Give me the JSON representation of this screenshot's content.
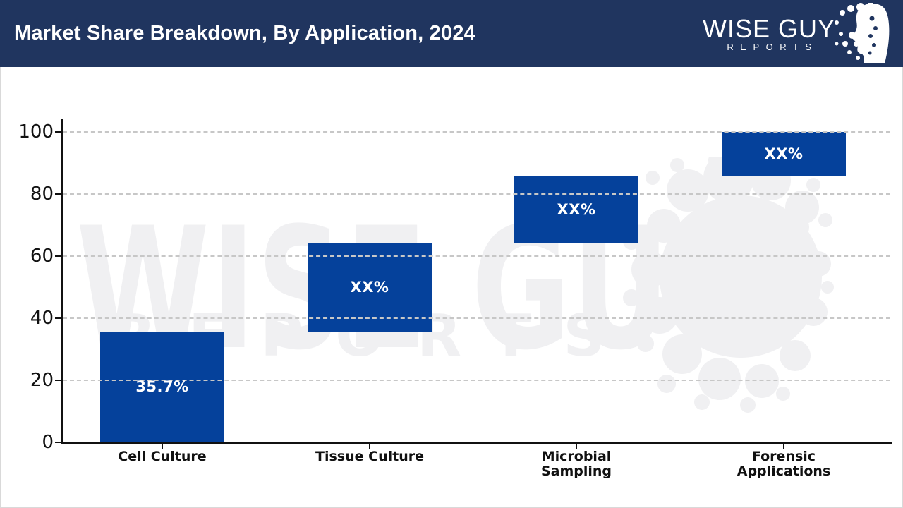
{
  "header": {
    "title": "Market Share Breakdown, By Application, 2024",
    "logo": {
      "line1": "WISE GUY",
      "line2": "REPORTS"
    },
    "background_color": "#20355f"
  },
  "watermark": {
    "line1": "WISE GU",
    "line2": "REPORTS"
  },
  "chart_data": {
    "type": "bar",
    "variant": "floating-waterfall",
    "title": "Market Share Breakdown, By Application, 2024",
    "categories": [
      "Cell Culture",
      "Tissue Culture",
      "Microbial Sampling",
      "Forensic Applications"
    ],
    "segments": [
      {
        "category": "Cell Culture",
        "start": 0,
        "end": 35.7,
        "value": 35.7,
        "label": "35.7%"
      },
      {
        "category": "Tissue Culture",
        "start": 35.7,
        "end": 64.3,
        "value": 28.6,
        "label": "XX%"
      },
      {
        "category": "Microbial Sampling",
        "start": 64.3,
        "end": 85.7,
        "value": 21.4,
        "label": "XX%"
      },
      {
        "category": "Forensic Applications",
        "start": 85.7,
        "end": 100,
        "value": 14.3,
        "label": "XX%"
      }
    ],
    "yticks": [
      0,
      20,
      40,
      60,
      80,
      100
    ],
    "ylim": [
      0,
      104
    ],
    "xlabel": "",
    "ylabel": "",
    "grid": "horizontal-dashed",
    "grid_above_bars": true,
    "legend": "none",
    "bar_color": "#05419b",
    "bar_label_color": "#ffffff",
    "axis_color": "#111111",
    "grid_color": "#c7c7c7"
  }
}
